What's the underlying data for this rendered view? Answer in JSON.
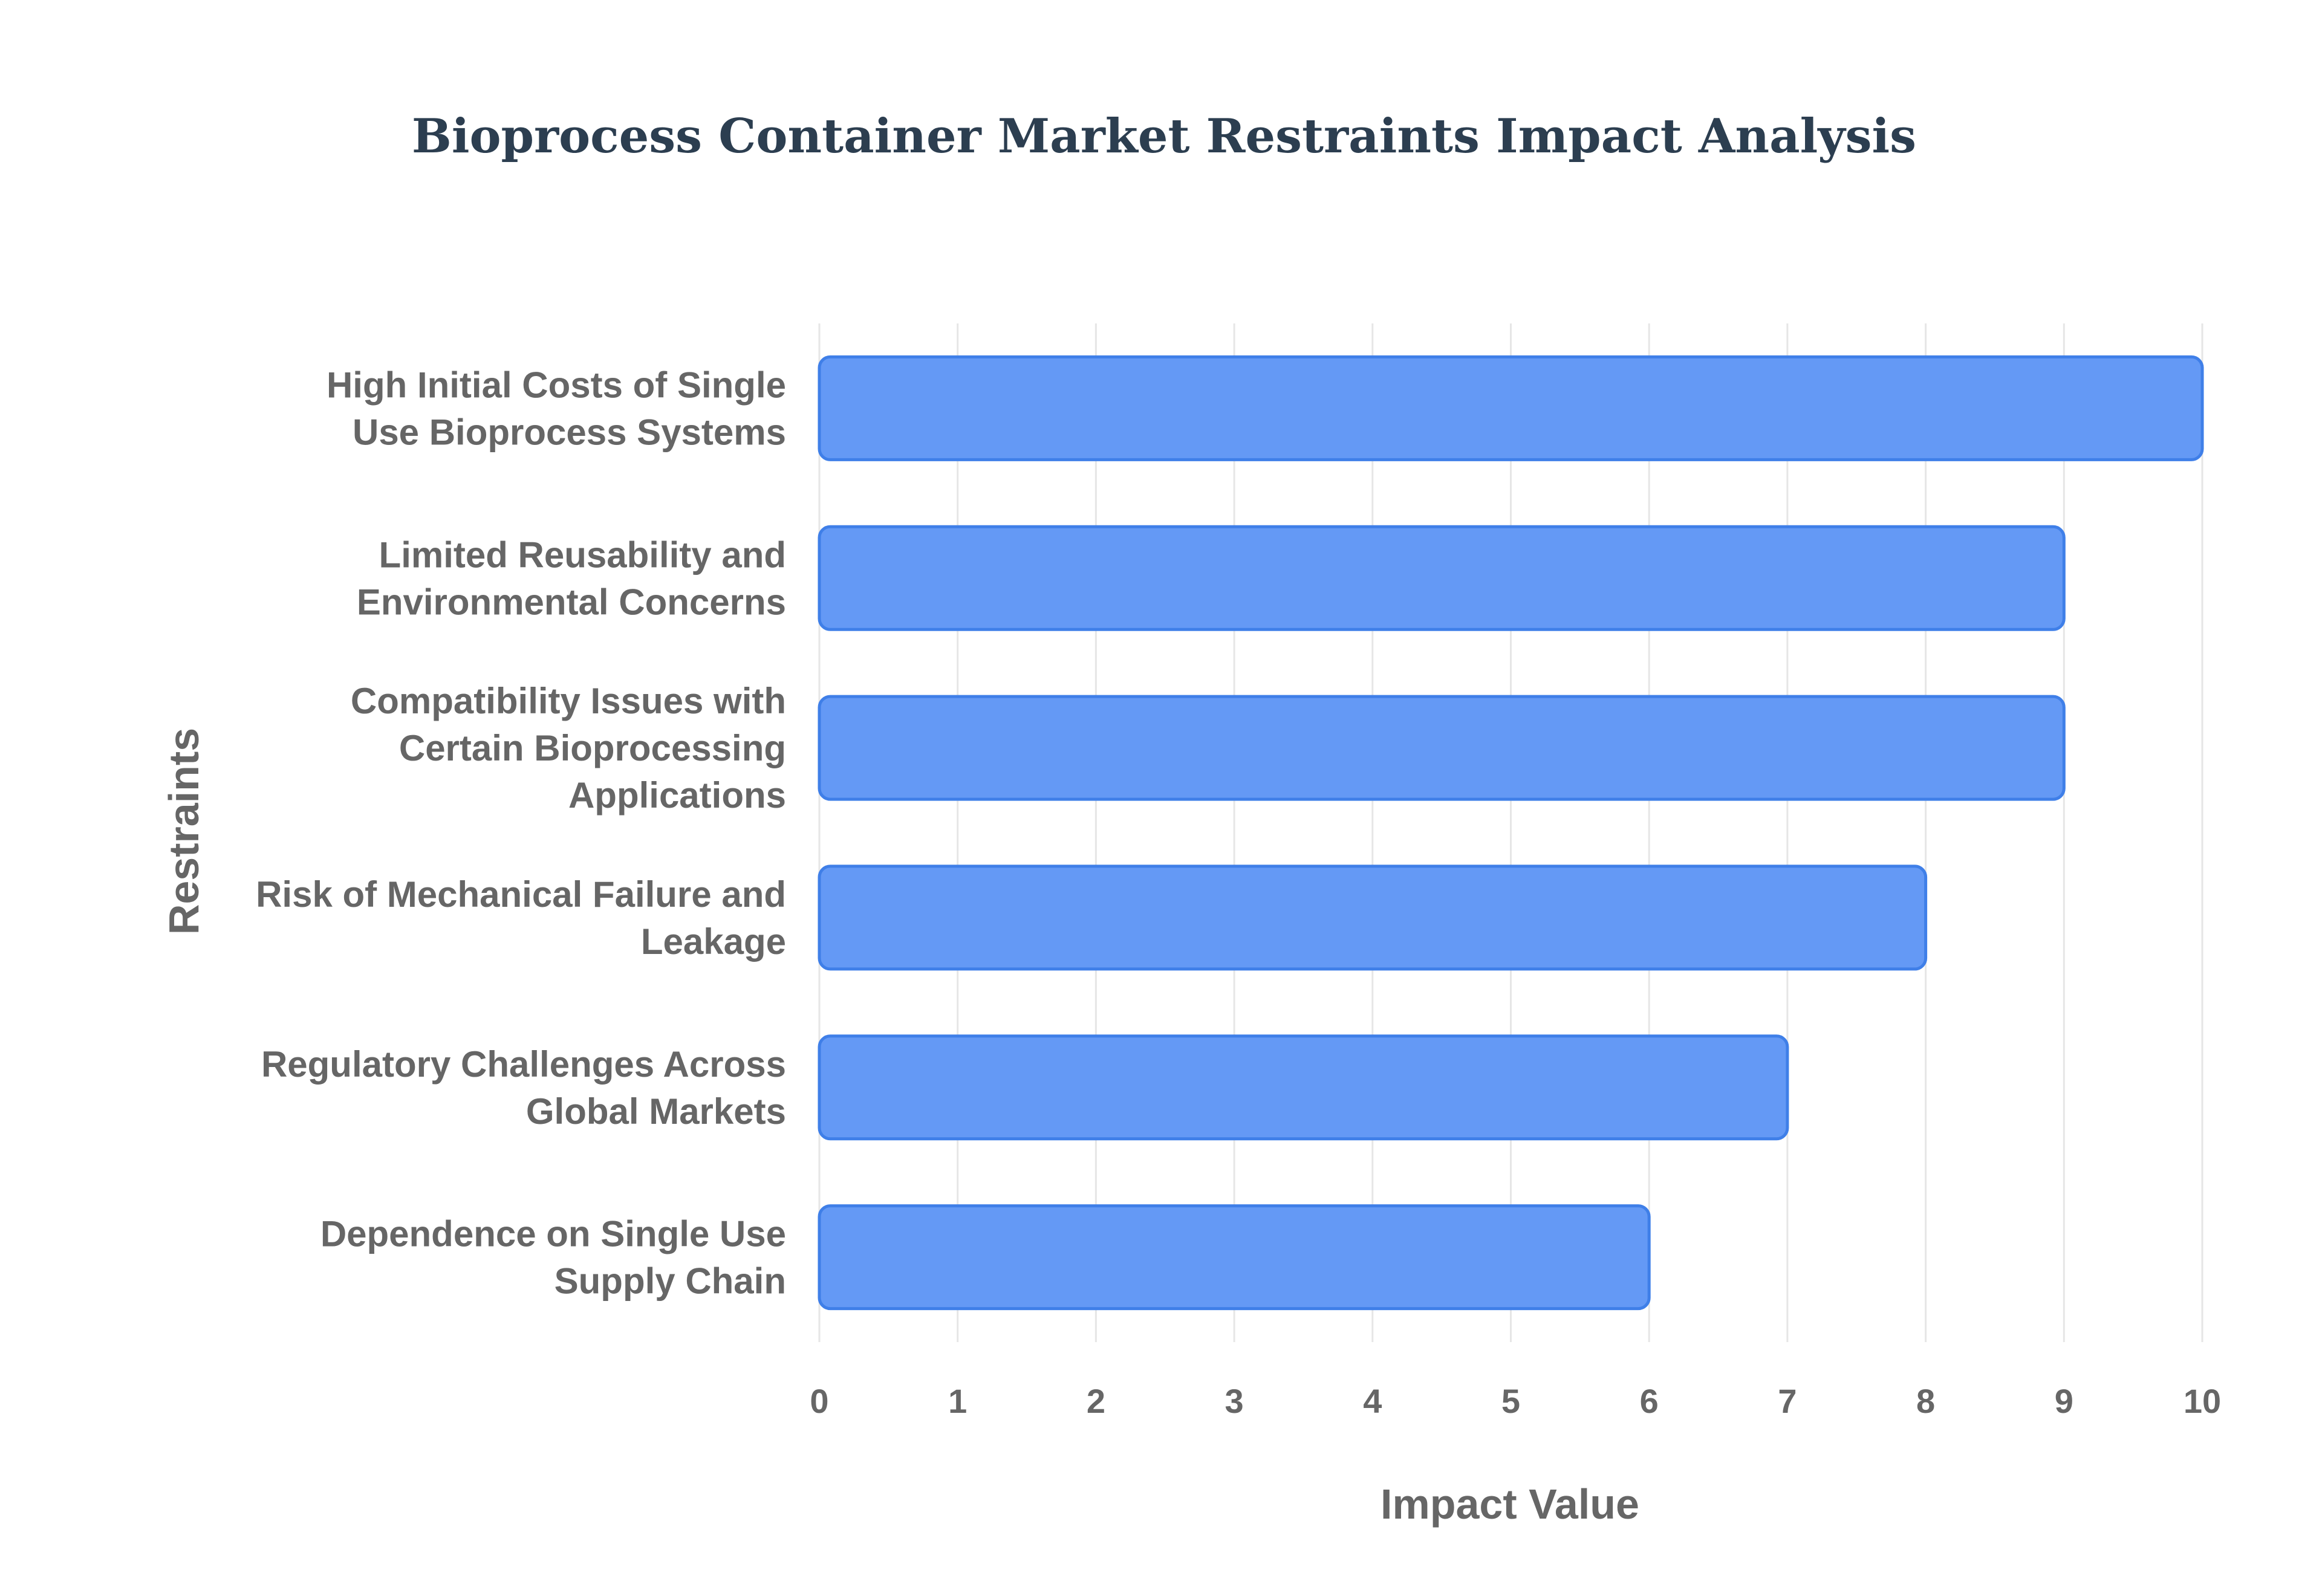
{
  "chart_data": {
    "type": "bar",
    "orientation": "horizontal",
    "title": "Bioprocess Container Market Restraints Impact Analysis",
    "xlabel": "Impact Value",
    "ylabel": "Restraints",
    "xlim": [
      0,
      10
    ],
    "x_ticks": [
      0,
      1,
      2,
      3,
      4,
      5,
      6,
      7,
      8,
      9,
      10
    ],
    "grid": true,
    "categories": [
      [
        "High Initial Costs of Single",
        "Use Bioprocess Systems"
      ],
      [
        "Limited Reusability and",
        "Environmental Concerns"
      ],
      [
        "Compatibility Issues with",
        "Certain Bioprocessing",
        "Applications"
      ],
      [
        "Risk of Mechanical Failure and",
        "Leakage"
      ],
      [
        "Regulatory Challenges Across",
        "Global Markets"
      ],
      [
        "Dependence on Single Use",
        "Supply Chain"
      ]
    ],
    "values": [
      10,
      9,
      9,
      8,
      7,
      6
    ],
    "colors": {
      "bar_fill": "#6499f5",
      "bar_stroke": "#3f7fe8",
      "title": "#2c3e50",
      "text": "#666666",
      "grid": "#e6e6e6"
    }
  }
}
